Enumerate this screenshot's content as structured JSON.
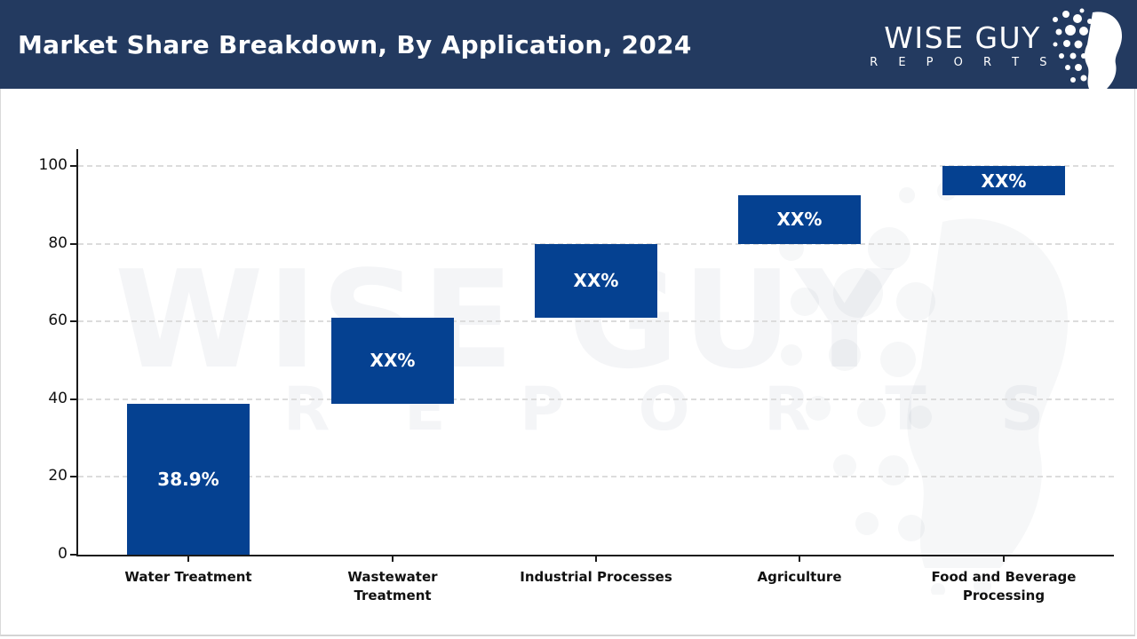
{
  "header": {
    "title": "Market Share Breakdown, By Application, 2024",
    "logo": {
      "line1": "WISE GUY",
      "line2": "R E P O R T S"
    }
  },
  "watermark": {
    "line1": "WISE GUY",
    "line2": "R E P O R T S"
  },
  "colors": {
    "header_bg": "#233a60",
    "bar_blue": "#054191",
    "grid": "#dcdcdc",
    "axis": "#1a1a1a",
    "bar_label_text": "#ffffff"
  },
  "chart_data": {
    "type": "bar",
    "subtype": "waterfall",
    "title": "Market Share Breakdown, By Application, 2024",
    "categories": [
      "Water Treatment",
      "Wastewater Treatment",
      "Industrial Processes",
      "Agriculture",
      "Food and Beverage Processing"
    ],
    "segments": [
      {
        "category": "Water Treatment",
        "start": 0,
        "end": 38.9,
        "label": "38.9%"
      },
      {
        "category": "Wastewater Treatment",
        "start": 38.9,
        "end": 61.0,
        "label": "XX%"
      },
      {
        "category": "Industrial Processes",
        "start": 61.0,
        "end": 80.0,
        "label": "XX%"
      },
      {
        "category": "Agriculture",
        "start": 80.0,
        "end": 92.4,
        "label": "XX%"
      },
      {
        "category": "Food and Beverage Processing",
        "start": 92.4,
        "end": 100.0,
        "label": "XX%"
      }
    ],
    "xlabel": "",
    "ylabel": "",
    "ylim": [
      0,
      104
    ],
    "yticks": [
      0,
      20,
      40,
      60,
      80,
      100
    ],
    "grid": "horizontal-dashed",
    "legend": null
  }
}
